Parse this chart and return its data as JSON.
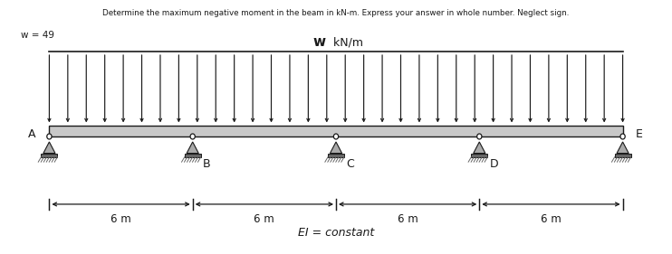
{
  "title_text": "Determine the maximum negative moment in the beam in kN-m. Express your answer in whole number. Neglect sign.",
  "w_label": "w = 49",
  "ei_label": "EI = constant",
  "supports": [
    0,
    6,
    12,
    18,
    24
  ],
  "support_labels": [
    "A",
    "B",
    "C",
    "D",
    "E"
  ],
  "span_labels": [
    "6 m",
    "6 m",
    "6 m",
    "6 m"
  ],
  "beam_color": "#c8c8c8",
  "background_color": "#ffffff",
  "text_color": "#1a1a1a",
  "num_arrows": 32,
  "arrow_color": "#1a1a1a",
  "support_gray": "#aaaaaa",
  "support_dark": "#666666",
  "xlim": [
    -1.5,
    25.5
  ],
  "ylim": [
    -3.8,
    5.2
  ]
}
